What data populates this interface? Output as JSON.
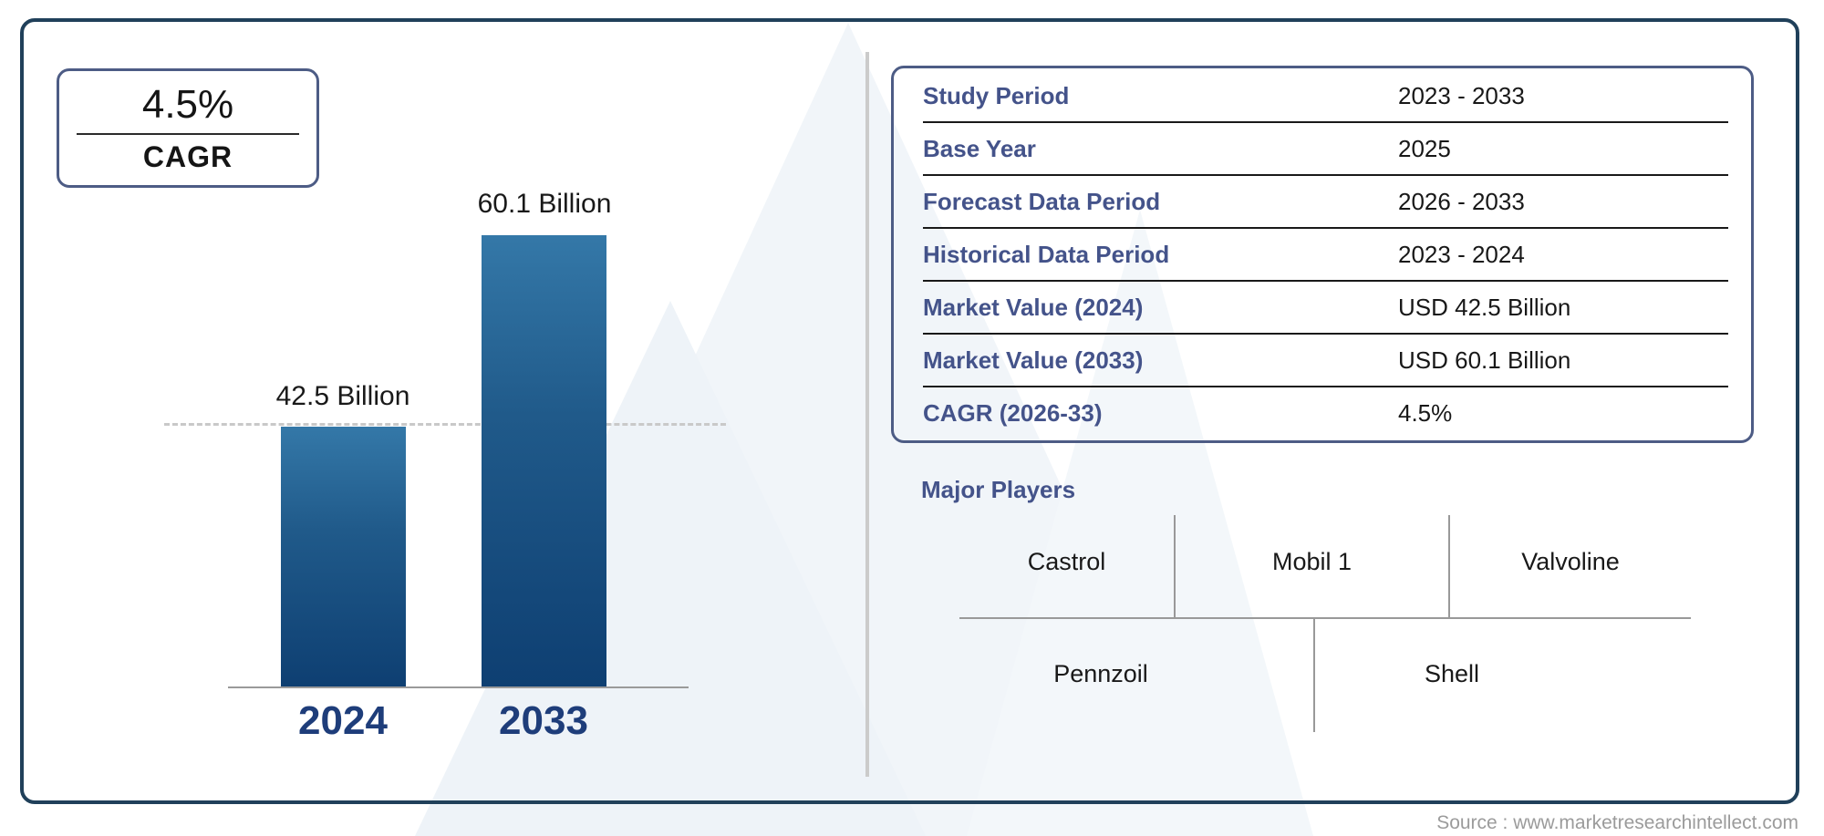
{
  "cagr_badge": {
    "value": "4.5%",
    "label": "CAGR"
  },
  "chart_data": {
    "type": "bar",
    "title": "Market value bar chart",
    "categories": [
      "2024",
      "2033"
    ],
    "values": [
      42.5,
      60.1
    ],
    "unit": "USD Billion",
    "value_labels": [
      "42.5 Billion",
      "60.1 Billion"
    ],
    "reference_line_value": 42.5,
    "reference_line_style": "dashed",
    "grid": "off",
    "bar_color_top": "#3478a8",
    "bar_color_bottom": "#0e3f72",
    "category_label_color": "#1e3d7a"
  },
  "info_table": {
    "label_color": "#44538a",
    "rows": [
      {
        "label": "Study Period",
        "value": "2023 - 2033"
      },
      {
        "label": "Base Year",
        "value": "2025"
      },
      {
        "label": "Forecast Data Period",
        "value": "2026 - 2033"
      },
      {
        "label": "Historical Data Period",
        "value": "2023 - 2024"
      },
      {
        "label": "Market Value (2024)",
        "value": "USD 42.5 Billion"
      },
      {
        "label": "Market Value (2033)",
        "value": "USD 60.1 Billion"
      },
      {
        "label": "CAGR (2026-33)",
        "value": "4.5%"
      }
    ]
  },
  "major_players": {
    "title": "Major Players",
    "row1": [
      "Castrol",
      "Mobil 1",
      "Valvoline"
    ],
    "row2": [
      "Pennzoil",
      "Shell"
    ]
  },
  "footer": {
    "source_note": "Source : www.marketresearchintellect.com"
  }
}
